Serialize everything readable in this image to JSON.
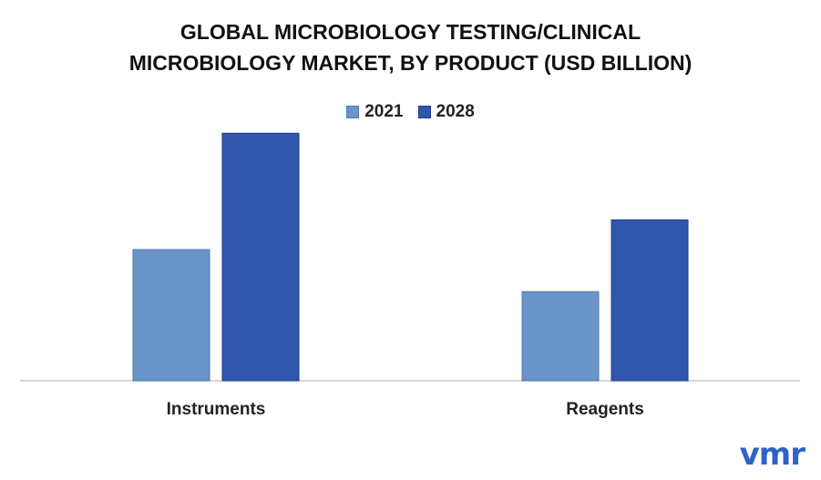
{
  "chart_data": {
    "type": "bar",
    "title_lines": [
      "GLOBAL MICROBIOLOGY TESTING/CLINICAL",
      "MICROBIOLOGY MARKET, BY PRODUCT (USD BILLION)"
    ],
    "categories": [
      "Instruments",
      "Reagents"
    ],
    "series": [
      {
        "name": "2021",
        "values": [
          5.3,
          3.6
        ],
        "color": "#6a93c8"
      },
      {
        "name": "2028",
        "values": [
          10.0,
          6.5
        ],
        "color": "#2f55ad"
      }
    ],
    "ylim": [
      0,
      10.6
    ],
    "grid": false,
    "legend_position": "top-center"
  },
  "brand": {
    "logo_text": "vmr"
  }
}
